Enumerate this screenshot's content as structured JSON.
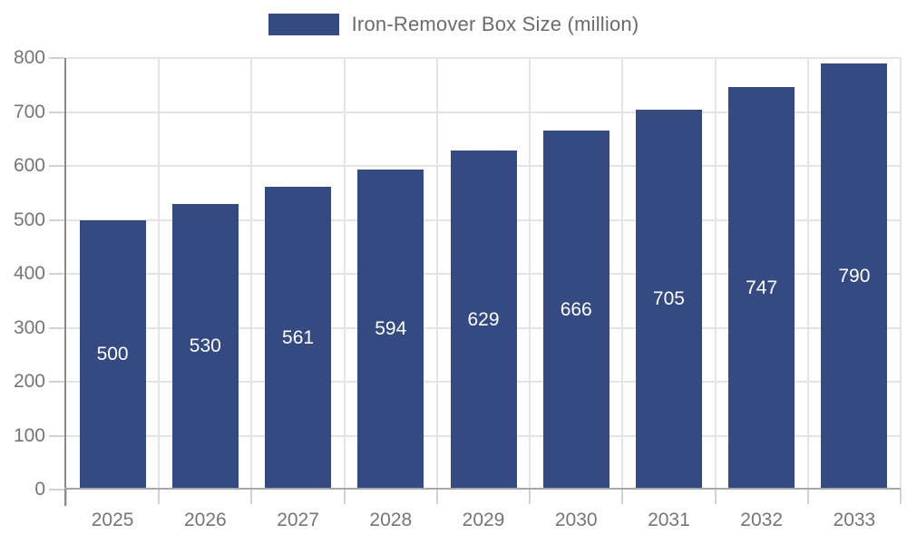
{
  "legend": {
    "label": "Iron-Remover Box Size (million)"
  },
  "colors": {
    "bar": "#344a81",
    "grid": "#e4e4e8",
    "axis_text": "#757575",
    "legend_text": "#6b6b6b",
    "value_label": "#ffffff"
  },
  "chart_data": {
    "type": "bar",
    "title": "Iron-Remover Box Size (million)",
    "categories": [
      "2025",
      "2026",
      "2027",
      "2028",
      "2029",
      "2030",
      "2031",
      "2032",
      "2033"
    ],
    "values": [
      500,
      530,
      561,
      594,
      629,
      666,
      705,
      747,
      790
    ],
    "xlabel": "",
    "ylabel": "",
    "ylim": [
      0,
      800
    ],
    "yticks": [
      0,
      100,
      200,
      300,
      400,
      500,
      600,
      700,
      800
    ],
    "grid": true,
    "legend_position": "top-center",
    "value_labels": "inside-center"
  }
}
